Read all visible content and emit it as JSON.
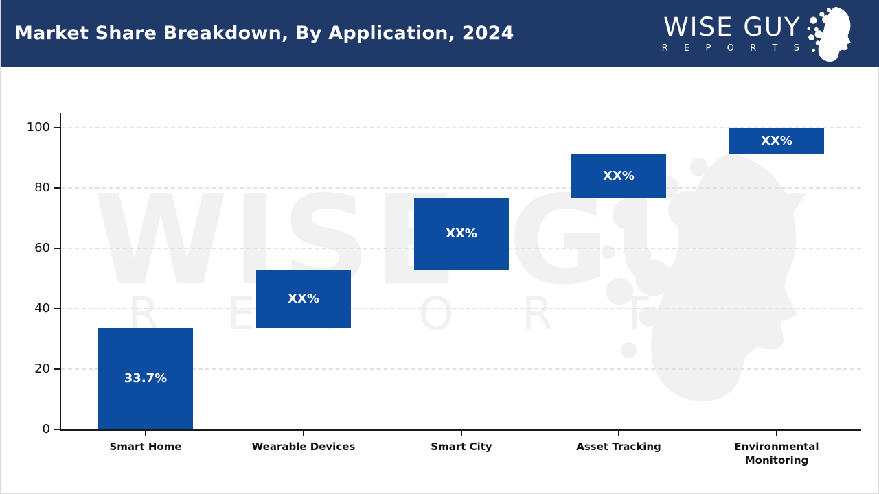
{
  "header": {
    "title": "Market Share Breakdown, By Application, 2024",
    "logo": {
      "line1": "WISE GUY",
      "line2": "REPORTS"
    }
  },
  "watermark": {
    "line1": "WISE GUY",
    "line2": "REPORTS"
  },
  "colors": {
    "header_bg": "#1f3a68",
    "bar": "#0c4da2",
    "bar_label": "#ffffff",
    "grid": "#e2e2e2",
    "axis": "#1a1a1a",
    "watermark": "#f1f1f2",
    "title_text": "#ffffff"
  },
  "chart_data": {
    "type": "bar",
    "subtype": "waterfall",
    "title": "Market Share Breakdown, By Application, 2024",
    "categories": [
      "Smart Home",
      "Wearable Devices",
      "Smart City",
      "Asset Tracking",
      "Environmental Monitoring"
    ],
    "segments": [
      {
        "category": "Smart Home",
        "start": 0,
        "end": 33.7,
        "label": "33.7%"
      },
      {
        "category": "Wearable Devices",
        "start": 33.7,
        "end": 52.8,
        "label": "XX%"
      },
      {
        "category": "Smart City",
        "start": 52.8,
        "end": 76.9,
        "label": "XX%"
      },
      {
        "category": "Asset Tracking",
        "start": 76.9,
        "end": 91.2,
        "label": "XX%"
      },
      {
        "category": "Environmental Monitoring",
        "start": 91.2,
        "end": 100,
        "label": "XX%"
      }
    ],
    "xlabel": "",
    "ylabel": "",
    "yticks": [
      0,
      20,
      40,
      60,
      80,
      100
    ],
    "ylim": [
      0,
      105
    ],
    "grid": "horizontal-dashed",
    "legend": "none"
  }
}
